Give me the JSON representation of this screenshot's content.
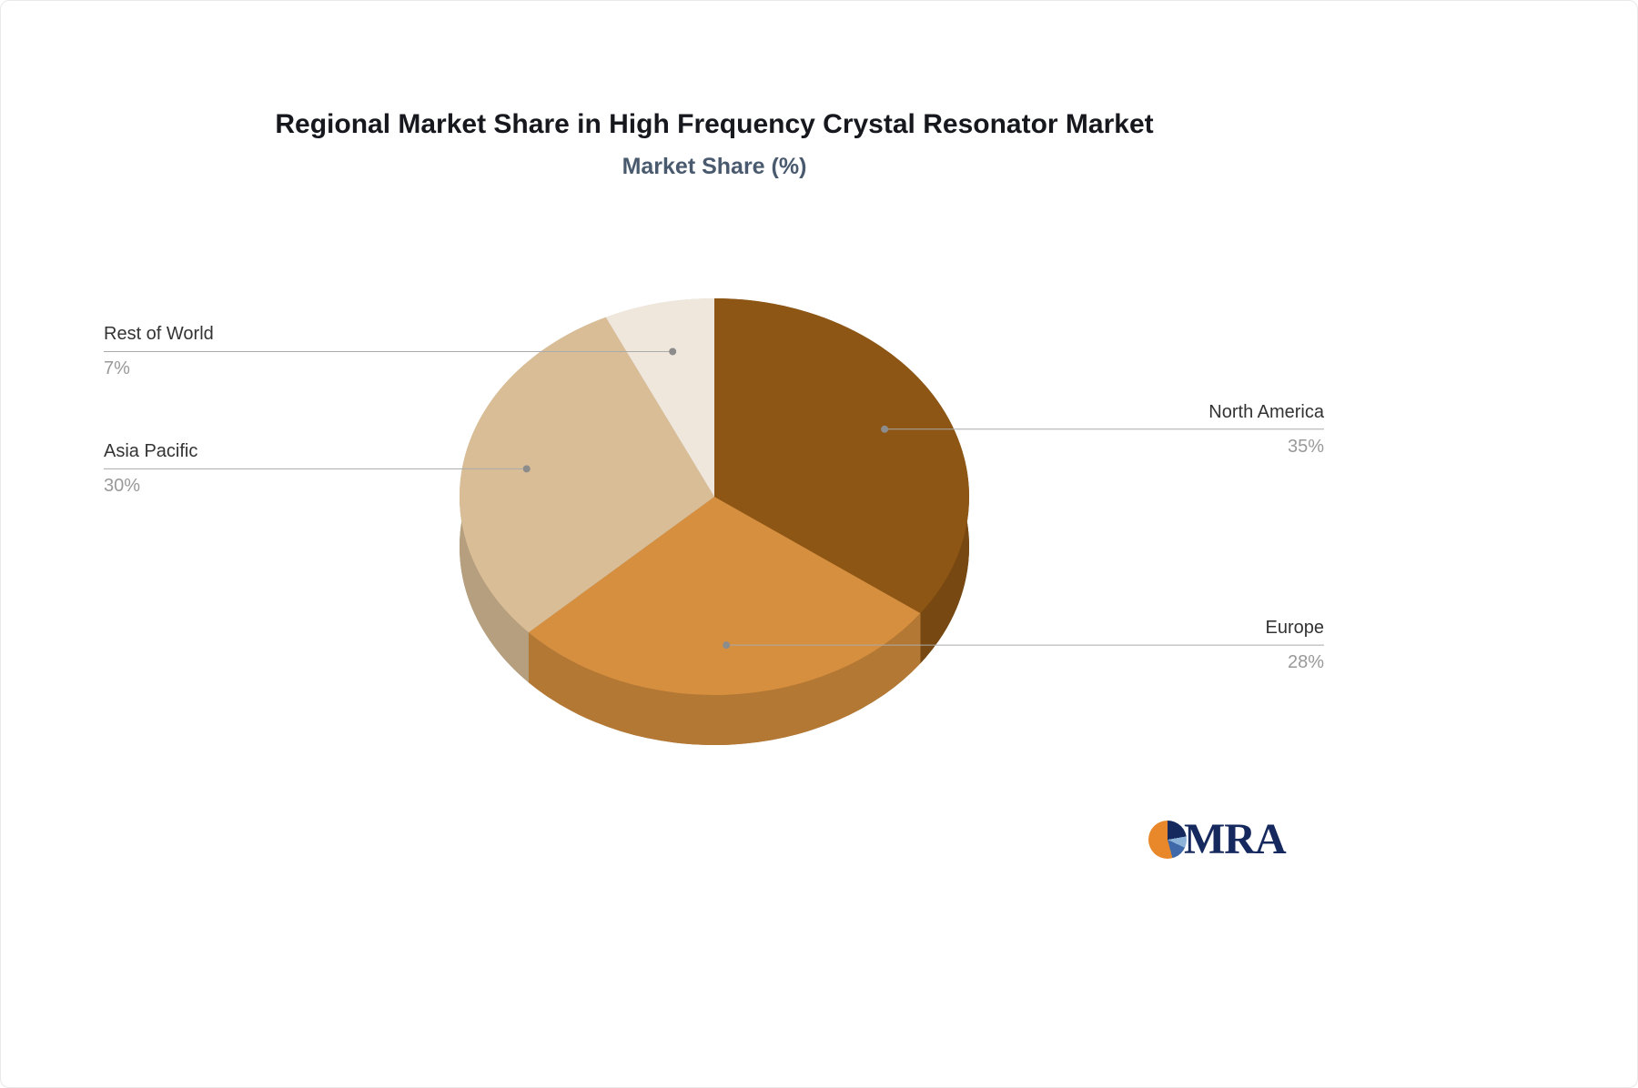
{
  "title": "Regional Market Share in High Frequency Crystal Resonator Market",
  "subtitle": "Market Share (%)",
  "logo": {
    "text": "MRA"
  },
  "chart_data": {
    "type": "pie",
    "title": "Regional Market Share in High Frequency Crystal Resonator Market",
    "subtitle": "Market Share (%)",
    "style": "3d",
    "direction": "clockwise",
    "start_angle_deg": 0,
    "legend": "none",
    "label_style": "leader-lines",
    "unit": "%",
    "labels": [
      "North America",
      "Europe",
      "Asia Pacific",
      "Rest of World"
    ],
    "values": [
      35,
      28,
      30,
      7
    ],
    "percent_labels": [
      "35%",
      "28%",
      "30%",
      "7%"
    ],
    "colors": [
      "#8E5614",
      "#D68F3F",
      "#D9BD96",
      "#F0E7DC"
    ],
    "line_color": "#aaaaaa",
    "dot_color": "#8c8c8c"
  }
}
